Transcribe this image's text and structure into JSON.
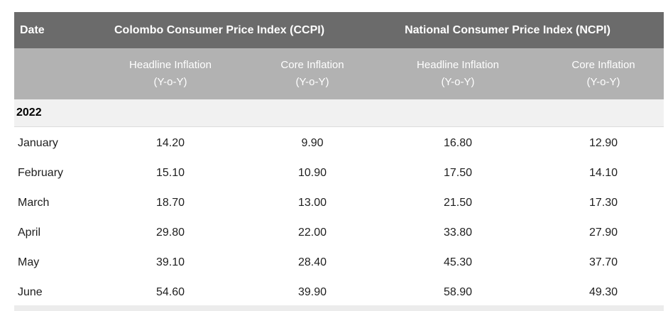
{
  "colors": {
    "header_bg": "#6b6b6b",
    "subheader_bg": "#b2b2b2",
    "section_bg": "#f1f1f1",
    "row_bg": "#ffffff",
    "header_text": "#ffffff",
    "body_text": "#1e1e1e",
    "bottom_strip": "#ececec"
  },
  "table": {
    "header": {
      "date": "Date",
      "ccpi": "Colombo Consumer Price Index (CCPI)",
      "ncpi": "National Consumer Price Index (NCPI)"
    },
    "subheader": {
      "headline": "Headline Inflation",
      "core": "Core Inflation",
      "yoy": "(Y-o-Y)"
    },
    "section_label": "2022",
    "rows": [
      {
        "month": "January",
        "ccpi_headline": "14.20",
        "ccpi_core": "9.90",
        "ncpi_headline": "16.80",
        "ncpi_core": "12.90"
      },
      {
        "month": "February",
        "ccpi_headline": "15.10",
        "ccpi_core": "10.90",
        "ncpi_headline": "17.50",
        "ncpi_core": "14.10"
      },
      {
        "month": "March",
        "ccpi_headline": "18.70",
        "ccpi_core": "13.00",
        "ncpi_headline": "21.50",
        "ncpi_core": "17.30"
      },
      {
        "month": "April",
        "ccpi_headline": "29.80",
        "ccpi_core": "22.00",
        "ncpi_headline": "33.80",
        "ncpi_core": "27.90"
      },
      {
        "month": "May",
        "ccpi_headline": "39.10",
        "ccpi_core": "28.40",
        "ncpi_headline": "45.30",
        "ncpi_core": "37.70"
      },
      {
        "month": "June",
        "ccpi_headline": "54.60",
        "ccpi_core": "39.90",
        "ncpi_headline": "58.90",
        "ncpi_core": "49.30"
      }
    ]
  },
  "chart_data": {
    "type": "table",
    "title": "Colombo Consumer Price Index (CCPI) and National Consumer Price Index (NCPI)",
    "section": "2022",
    "columns": [
      "Date",
      "CCPI Headline Inflation (Y-o-Y)",
      "CCPI Core Inflation (Y-o-Y)",
      "NCPI Headline Inflation (Y-o-Y)",
      "NCPI Core Inflation (Y-o-Y)"
    ],
    "rows": [
      [
        "January",
        14.2,
        9.9,
        16.8,
        12.9
      ],
      [
        "February",
        15.1,
        10.9,
        17.5,
        14.1
      ],
      [
        "March",
        18.7,
        13.0,
        21.5,
        17.3
      ],
      [
        "April",
        29.8,
        22.0,
        33.8,
        27.9
      ],
      [
        "May",
        39.1,
        28.4,
        45.3,
        37.7
      ],
      [
        "June",
        54.6,
        39.9,
        58.9,
        49.3
      ]
    ]
  }
}
